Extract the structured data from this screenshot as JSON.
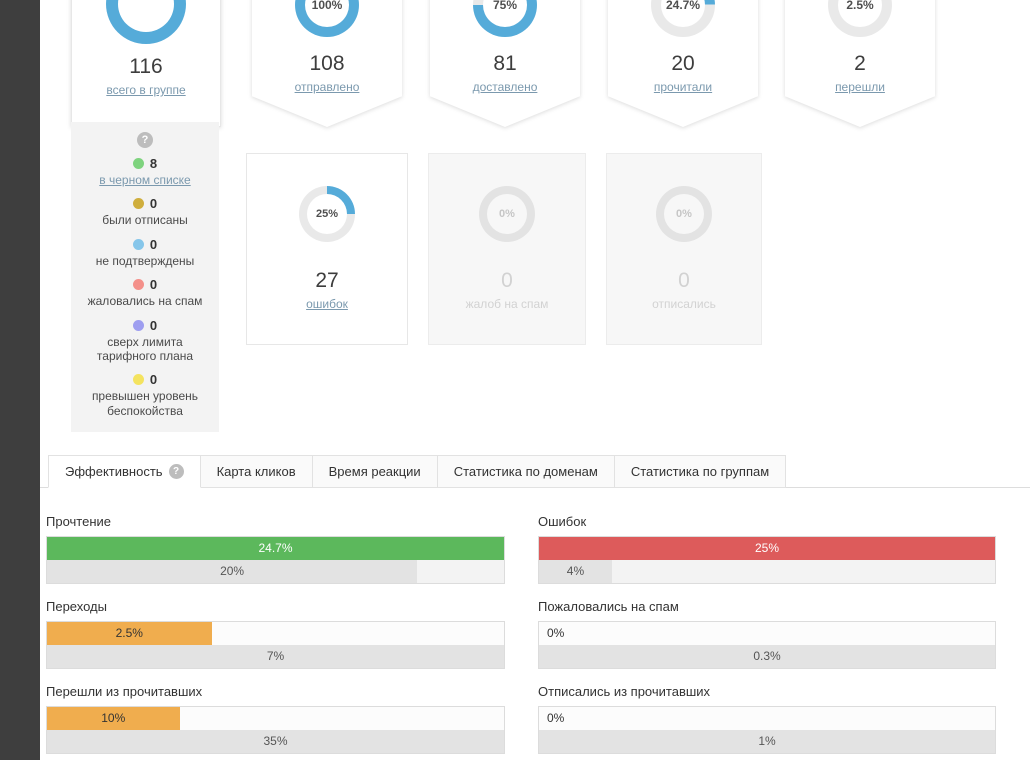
{
  "colors": {
    "accent_blue": "#55abd9",
    "green": "#5cb85c",
    "red": "#dd5b5b",
    "orange": "#f0ad4e",
    "sidebar": "#3e3e3e"
  },
  "help_icon": "?",
  "top_cards": [
    {
      "percent": "",
      "value": "116",
      "label": "всего в группе",
      "donut": {
        "pct": 100,
        "color": "#55abd9",
        "track": "#e9e9e9"
      }
    },
    {
      "percent": "100%",
      "value": "108",
      "label": "отправлено",
      "donut": {
        "pct": 100,
        "color": "#55abd9",
        "track": "#e9e9e9"
      }
    },
    {
      "percent": "75%",
      "value": "81",
      "label": "доставлено",
      "donut": {
        "pct": 75,
        "color": "#55abd9",
        "track": "#e9e9e9"
      }
    },
    {
      "percent": "24.7%",
      "value": "20",
      "label": "прочитали",
      "donut": {
        "pct": 24.7,
        "color": "#55abd9",
        "track": "#e9e9e9"
      }
    },
    {
      "percent": "2.5%",
      "value": "2",
      "label": "перешли",
      "donut": {
        "pct": 2.5,
        "color": "#55abd9",
        "track": "#e9e9e9"
      }
    }
  ],
  "blacklist_panel": {
    "items": [
      {
        "value": "8",
        "label": "в черном списке",
        "color": "#7ed37e"
      },
      {
        "value": "0",
        "label": "были отписаны",
        "color": "#cfae3d"
      },
      {
        "value": "0",
        "label": "не подтверждены",
        "color": "#86c6ea"
      },
      {
        "value": "0",
        "label": "жаловались на спам",
        "color": "#f4908a"
      },
      {
        "value": "0",
        "label": "сверх лимита тарифного плана",
        "color": "#9e9ef0"
      },
      {
        "value": "0",
        "label": "превышен уровень беспокойства",
        "color": "#f4e35f"
      }
    ]
  },
  "secondary_cards": [
    {
      "percent": "25%",
      "value": "27",
      "label": "ошибок",
      "donut": {
        "pct": 25,
        "color": "#55abd9",
        "track": "#e9e9e9"
      }
    },
    {
      "percent": "0%",
      "value": "0",
      "label": "жалоб на спам",
      "donut": {
        "pct": 0,
        "color": "#e3e3e3",
        "track": "#e3e3e3"
      }
    },
    {
      "percent": "0%",
      "value": "0",
      "label": "отписались",
      "donut": {
        "pct": 0,
        "color": "#e3e3e3",
        "track": "#e3e3e3"
      }
    }
  ],
  "tabs": [
    {
      "label": "Эффективность"
    },
    {
      "label": "Карта кликов"
    },
    {
      "label": "Время реакции"
    },
    {
      "label": "Статистика по доменам"
    },
    {
      "label": "Статистика по группам"
    }
  ],
  "chart_data": {
    "type": "bar",
    "note": "each group: campaign value (colored) vs average (gray); fill pct is relative to the max of the pair",
    "groups": [
      {
        "title": "Прочтение",
        "main": {
          "label": "24.7%",
          "value": 24.7,
          "pct": 100,
          "color": "#5cb85c",
          "text": "#ffffff"
        },
        "avg": {
          "label": "20%",
          "value": 20,
          "pct": 81,
          "color": "#e3e3e3",
          "text": "#555555"
        }
      },
      {
        "title": "Переходы",
        "main": {
          "label": "2.5%",
          "value": 2.5,
          "pct": 36,
          "color": "#f0ad4e",
          "text": "#333333"
        },
        "avg": {
          "label": "7%",
          "value": 7,
          "pct": 100,
          "color": "#e3e3e3",
          "text": "#555555"
        }
      },
      {
        "title": "Перешли из прочитавших",
        "main": {
          "label": "10%",
          "value": 10,
          "pct": 29,
          "color": "#f0ad4e",
          "text": "#333333"
        },
        "avg": {
          "label": "35%",
          "value": 35,
          "pct": 100,
          "color": "#e3e3e3",
          "text": "#555555"
        }
      },
      {
        "title": "Ошибок",
        "main": {
          "label": "25%",
          "value": 25,
          "pct": 100,
          "color": "#dd5b5b",
          "text": "#ffffff"
        },
        "avg": {
          "label": "4%",
          "value": 4,
          "pct": 16,
          "color": "#e3e3e3",
          "text": "#555555"
        }
      },
      {
        "title": "Пожаловались на спам",
        "main": {
          "label": "0%",
          "value": 0,
          "pct": 0,
          "color": "#f0ad4e",
          "text": "#333333"
        },
        "avg": {
          "label": "0.3%",
          "value": 0.3,
          "pct": 100,
          "color": "#e3e3e3",
          "text": "#555555"
        }
      },
      {
        "title": "Отписались из прочитавших",
        "main": {
          "label": "0%",
          "value": 0,
          "pct": 0,
          "color": "#f0ad4e",
          "text": "#333333"
        },
        "avg": {
          "label": "1%",
          "value": 1,
          "pct": 100,
          "color": "#e3e3e3",
          "text": "#555555"
        }
      }
    ]
  }
}
